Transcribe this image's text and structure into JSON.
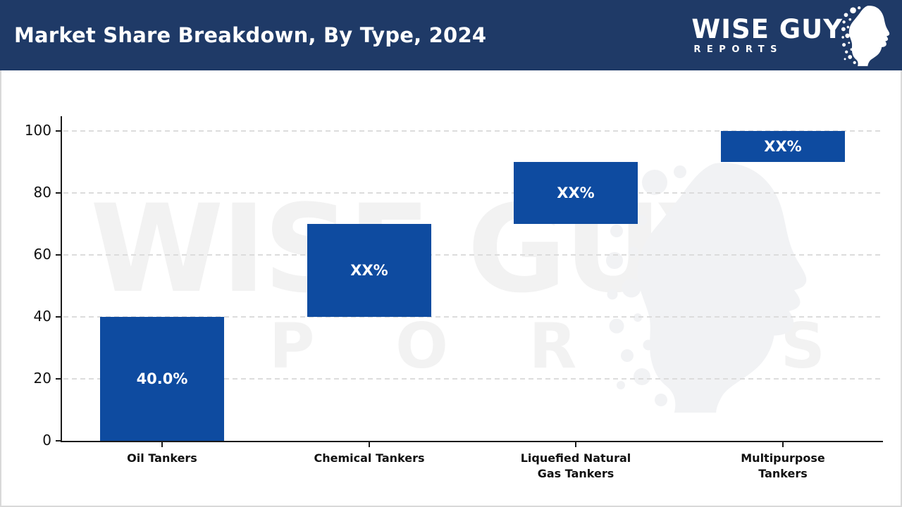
{
  "header": {
    "title": "Market Share Breakdown, By Type, 2024",
    "logo": {
      "line1": "WISE GUY",
      "line2": "REPORTS"
    }
  },
  "watermark": {
    "line1": "WISE GUY",
    "line2": "P O R T S"
  },
  "chart_data": {
    "type": "bar",
    "subtype": "waterfall",
    "title": "Market Share Breakdown, By Type, 2024",
    "categories": [
      "Oil Tankers",
      "Chemical Tankers",
      "Liquefied Natural\nGas Tankers",
      "Multipurpose\nTankers"
    ],
    "series": [
      {
        "name": "Market Share (%)",
        "values": [
          40,
          30,
          20,
          10
        ],
        "segments": [
          {
            "category": "Oil Tankers",
            "start": 0,
            "end": 40,
            "label": "40.0%"
          },
          {
            "category": "Chemical Tankers",
            "start": 40,
            "end": 70,
            "label": "XX%"
          },
          {
            "category": "Liquefied Natural\nGas Tankers",
            "start": 70,
            "end": 90,
            "label": "XX%"
          },
          {
            "category": "Multipurpose\nTankers",
            "start": 90,
            "end": 100,
            "label": "XX%"
          }
        ]
      }
    ],
    "xlabel": "",
    "ylabel": "",
    "ylim": [
      0,
      100
    ],
    "yticks": [
      0,
      20,
      40,
      60,
      80,
      100
    ],
    "grid": "horizontal-dashed",
    "legend_position": "none",
    "bar_color": "#0e4ba0",
    "bar_label_color": "#ffffff"
  },
  "colors": {
    "header_bg": "#1f3a67",
    "bar": "#0e4ba0",
    "gridline": "#dcdcdc",
    "axis": "#1a1a1a",
    "watermark": "#f2f2f2",
    "panel_border": "#d9d9d9"
  }
}
